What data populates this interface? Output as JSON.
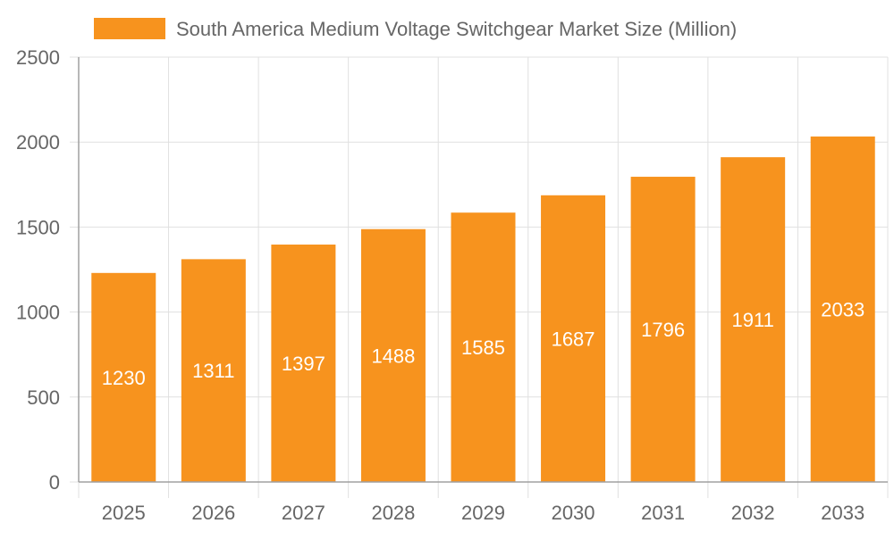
{
  "chart_data": {
    "type": "bar",
    "title": "",
    "xlabel": "",
    "ylabel": "",
    "categories": [
      "2025",
      "2026",
      "2027",
      "2028",
      "2029",
      "2030",
      "2031",
      "2032",
      "2033"
    ],
    "series": [
      {
        "name": "South America Medium Voltage Switchgear Market Size (Million)",
        "values": [
          1230,
          1311,
          1397,
          1488,
          1585,
          1687,
          1796,
          1911,
          2033
        ]
      }
    ],
    "ylim": [
      0,
      2500
    ],
    "yticks": [
      0,
      500,
      1000,
      1500,
      2000,
      2500
    ],
    "grid": true,
    "legend": "top",
    "data_labels": true,
    "colors": {
      "bar": "#f7931e",
      "grid": "#e0e0e0",
      "axis": "#a0a0a0",
      "text": "#666666",
      "label": "#ffffff"
    }
  }
}
